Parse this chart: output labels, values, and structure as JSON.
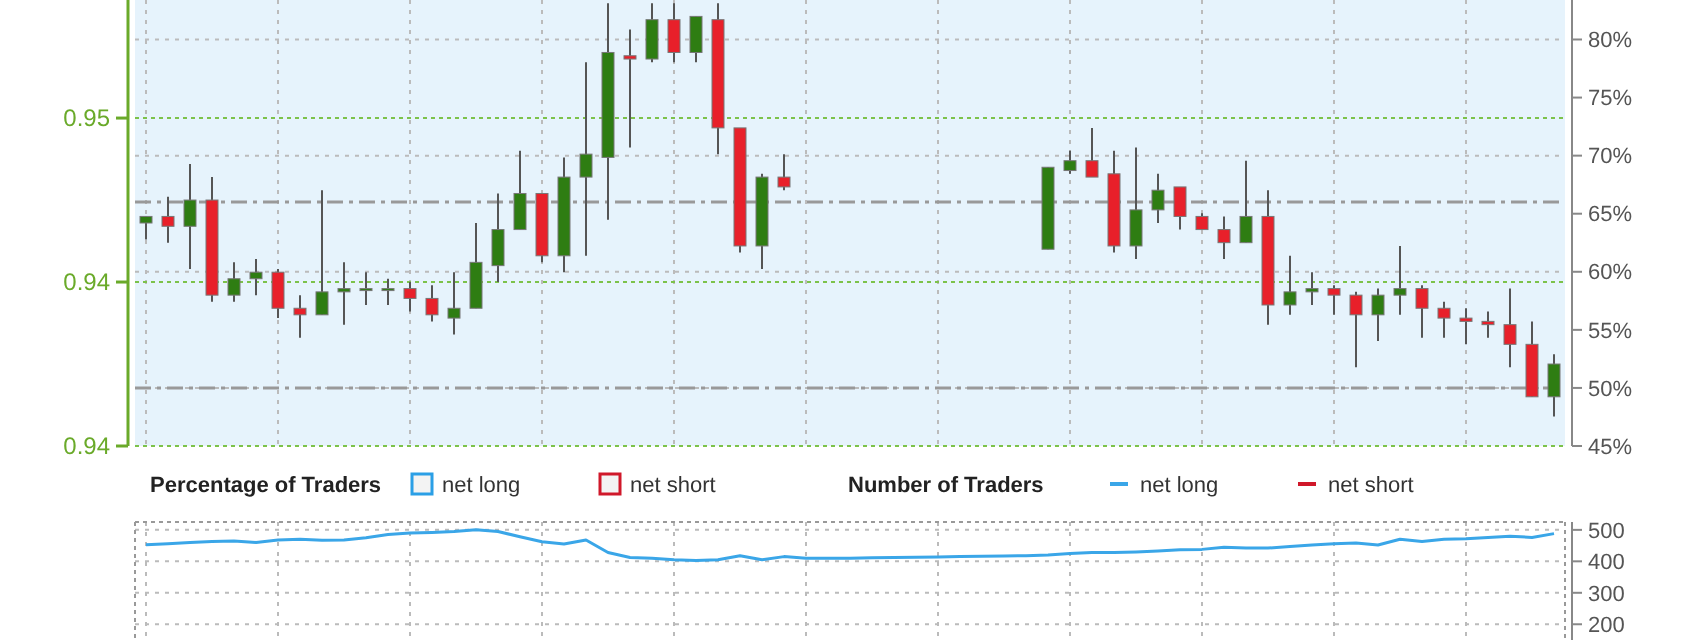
{
  "chart_data": [
    {
      "type": "candlestick",
      "categories": [
        null,
        null,
        null,
        null,
        null,
        null,
        null,
        null,
        null,
        null,
        null,
        null,
        null,
        null,
        null,
        null,
        null,
        null,
        null,
        null,
        null,
        null,
        null,
        null,
        null,
        null,
        null,
        null,
        null,
        null,
        null,
        null,
        null,
        null,
        null,
        null,
        null,
        null,
        null,
        null,
        null,
        null,
        null,
        null,
        null,
        null,
        null,
        null,
        null,
        null,
        null,
        null,
        null,
        null,
        null,
        null,
        null,
        null,
        null,
        null,
        null,
        null,
        null,
        null,
        null
      ],
      "ohlc": [
        [
          0.9468,
          0.947,
          0.9463,
          0.947
        ],
        [
          0.947,
          0.9476,
          0.9462,
          0.9467
        ],
        [
          0.9467,
          0.9486,
          0.9454,
          0.9475
        ],
        [
          0.9475,
          0.9482,
          0.9444,
          0.9446
        ],
        [
          0.9446,
          0.9456,
          0.9444,
          0.9451
        ],
        [
          0.9451,
          0.9457,
          0.9446,
          0.9453
        ],
        [
          0.9453,
          0.9454,
          0.9439,
          0.9442
        ],
        [
          0.9442,
          0.9446,
          0.9433,
          0.944
        ],
        [
          0.944,
          0.9478,
          0.944,
          0.9447
        ],
        [
          0.9447,
          0.9456,
          0.9437,
          0.9448
        ],
        [
          0.9448,
          0.9453,
          0.9443,
          0.9448
        ],
        [
          0.9448,
          0.9451,
          0.9443,
          0.9448
        ],
        [
          0.9448,
          0.945,
          0.9441,
          0.9445
        ],
        [
          0.9445,
          0.9449,
          0.9438,
          0.944
        ],
        [
          0.9439,
          0.9453,
          0.9434,
          0.9442
        ],
        [
          0.9442,
          0.9468,
          0.9442,
          0.9456
        ],
        [
          0.9455,
          0.9477,
          0.945,
          0.9466
        ],
        [
          0.9466,
          0.949,
          0.9466,
          0.9477
        ],
        [
          0.9477,
          0.9477,
          0.9456,
          0.9458
        ],
        [
          0.9458,
          0.9488,
          0.9453,
          0.9482
        ],
        [
          0.9482,
          0.9517,
          0.9458,
          0.9489
        ],
        [
          0.9488,
          0.9535,
          0.9469,
          0.952
        ],
        [
          0.9519,
          0.9527,
          0.9491,
          0.9518
        ],
        [
          0.9518,
          0.9535,
          0.9517,
          0.953
        ],
        [
          0.953,
          0.9535,
          0.9517,
          0.952
        ],
        [
          0.952,
          0.9531,
          0.9517,
          0.9531
        ],
        [
          0.953,
          0.9535,
          0.9489,
          0.9497
        ],
        [
          0.9497,
          0.9497,
          0.9459,
          0.9461
        ],
        [
          0.9461,
          0.9483,
          0.9454,
          0.9482
        ],
        [
          0.9482,
          0.9489,
          0.9478,
          0.9479
        ],
        null,
        null,
        null,
        null,
        null,
        null,
        null,
        null,
        null,
        null,
        null,
        [
          0.946,
          0.9485,
          0.946,
          0.9485
        ],
        [
          0.9484,
          0.949,
          0.9483,
          0.9487
        ],
        [
          0.9487,
          0.9497,
          0.9482,
          0.9482
        ],
        [
          0.9483,
          0.949,
          0.9459,
          0.9461
        ],
        [
          0.9461,
          0.9491,
          0.9457,
          0.9472
        ],
        [
          0.9472,
          0.9483,
          0.9468,
          0.9478
        ],
        [
          0.9479,
          0.9479,
          0.9466,
          0.947
        ],
        [
          0.947,
          0.9471,
          0.9466,
          0.9466
        ],
        [
          0.9466,
          0.947,
          0.9457,
          0.9462
        ],
        [
          0.9462,
          0.9487,
          0.9462,
          0.947
        ],
        [
          0.947,
          0.9478,
          0.9437,
          0.9443
        ],
        [
          0.9443,
          0.9458,
          0.944,
          0.9447
        ],
        [
          0.9447,
          0.9453,
          0.9443,
          0.9448
        ],
        [
          0.9448,
          0.9449,
          0.944,
          0.9446
        ],
        [
          0.9446,
          0.9447,
          0.9424,
          0.944
        ],
        [
          0.944,
          0.9448,
          0.9432,
          0.9446
        ],
        [
          0.9446,
          0.9461,
          0.944,
          0.9448
        ],
        [
          0.9448,
          0.9449,
          0.9433,
          0.9442
        ],
        [
          0.9442,
          0.9444,
          0.9433,
          0.9439
        ],
        [
          0.9439,
          0.9442,
          0.9431,
          0.9438
        ],
        [
          0.9438,
          0.9441,
          0.9433,
          0.9437
        ],
        [
          0.9437,
          0.9448,
          0.9424,
          0.9431
        ],
        [
          0.9431,
          0.9438,
          0.9415,
          0.9415
        ],
        [
          0.9415,
          0.9428,
          0.9409,
          0.9425
        ]
      ],
      "colors": [
        "#2e7d12",
        "#e8202a",
        "#2e7d12",
        "#e8202a",
        "#2e7d12",
        "#2e7d12",
        "#e8202a",
        "#e8202a",
        "#2e7d12",
        "#2e7d12",
        "#2e7d12",
        "#2e7d12",
        "#e8202a",
        "#e8202a",
        "#2e7d12",
        "#2e7d12",
        "#2e7d12",
        "#2e7d12",
        "#e8202a",
        "#2e7d12",
        "#2e7d12",
        "#2e7d12",
        "#e8202a",
        "#2e7d12",
        "#e8202a",
        "#2e7d12",
        "#e8202a",
        "#e8202a",
        "#2e7d12",
        "#e8202a",
        null,
        null,
        null,
        null,
        null,
        null,
        null,
        null,
        null,
        null,
        null,
        "#2e7d12",
        "#2e7d12",
        "#e8202a",
        "#e8202a",
        "#2e7d12",
        "#2e7d12",
        "#e8202a",
        "#e8202a",
        "#e8202a",
        "#2e7d12",
        "#e8202a",
        "#2e7d12",
        "#2e7d12",
        "#e8202a",
        "#e8202a",
        "#2e7d12",
        "#2e7d12",
        "#e8202a",
        "#e8202a",
        "#e8202a",
        "#e8202a",
        "#e8202a",
        "#e8202a",
        "#2e7d12"
      ],
      "ylim": [
        0.94,
        0.9536
      ],
      "yticks": [
        {
          "value": 0.94,
          "label": "0.94"
        },
        {
          "value": 0.945,
          "label": "0.94"
        },
        {
          "value": 0.95,
          "label": "0.95"
        }
      ],
      "y2lim": [
        45,
        83.4
      ],
      "y2ticks": [
        {
          "value": 45,
          "label": "45%"
        },
        {
          "value": 50,
          "label": "50%"
        },
        {
          "value": 55,
          "label": "55%"
        },
        {
          "value": 60,
          "label": "60%"
        },
        {
          "value": 65,
          "label": "65%"
        },
        {
          "value": 70,
          "label": "70%"
        },
        {
          "value": 75,
          "label": "75%"
        },
        {
          "value": 80,
          "label": "80%"
        }
      ],
      "ref_lines": [
        {
          "axis": "y2",
          "value": 66,
          "color": "#999999",
          "line_style": "dashed"
        },
        {
          "axis": "y2",
          "value": 50,
          "color": "#999999",
          "line_style": "dashed"
        }
      ],
      "series": [
        {
          "name": "net long",
          "type": "bar",
          "color": "#2b9fe6",
          "values": [
            null,
            null,
            null,
            null,
            null,
            null,
            null,
            null,
            null,
            null,
            null,
            null,
            null,
            null,
            null,
            null,
            null,
            null,
            null,
            null,
            null,
            null,
            null,
            null,
            null,
            null,
            null,
            null,
            null,
            null,
            null,
            null,
            null,
            null,
            null,
            null,
            null,
            null,
            null,
            null,
            null,
            null,
            null,
            null,
            null,
            null,
            null,
            null,
            null,
            null,
            null,
            null,
            null,
            null,
            null,
            null,
            null,
            null,
            null,
            null,
            null,
            null,
            null,
            null,
            null
          ]
        },
        {
          "name": "net short",
          "type": "bar",
          "color": "#d0182a",
          "values": [
            null,
            null,
            null,
            null,
            null,
            null,
            null,
            null,
            null,
            null,
            null,
            null,
            null,
            null,
            null,
            null,
            null,
            null,
            null,
            null,
            null,
            null,
            null,
            null,
            null,
            null,
            null,
            null,
            null,
            null,
            null,
            null,
            null,
            null,
            null,
            null,
            null,
            null,
            null,
            null,
            null,
            null,
            null,
            null,
            null,
            null,
            null,
            null,
            null,
            null,
            null,
            null,
            null,
            null,
            null,
            null,
            null,
            null,
            null,
            null,
            null,
            null,
            null,
            null,
            null
          ]
        }
      ],
      "legend_title": "Percentage of Traders",
      "legend": "bottom",
      "grid": true
    },
    {
      "type": "line",
      "categories": [
        null,
        null,
        null,
        null,
        null,
        null,
        null,
        null,
        null,
        null,
        null,
        null,
        null,
        null,
        null,
        null,
        null,
        null,
        null,
        null,
        null,
        null,
        null,
        null,
        null,
        null,
        null,
        null,
        null,
        null,
        null,
        null,
        null,
        null,
        null,
        null,
        null,
        null,
        null,
        null,
        null,
        null,
        null,
        null,
        null,
        null,
        null,
        null,
        null,
        null,
        null,
        null,
        null,
        null,
        null,
        null,
        null,
        null,
        null,
        null,
        null,
        null,
        null,
        null,
        null
      ],
      "series": [
        {
          "name": "net long",
          "color": "#3aa6e8",
          "values": [
            453,
            456,
            460,
            463,
            465,
            460,
            468,
            470,
            467,
            468,
            475,
            485,
            490,
            492,
            495,
            500,
            495,
            478,
            462,
            455,
            468,
            428,
            412,
            410,
            405,
            403,
            405,
            418,
            405,
            415,
            410,
            410,
            410,
            411,
            412,
            413,
            414,
            415,
            416,
            417,
            418,
            420,
            425,
            428,
            428,
            430,
            433,
            437,
            438,
            445,
            442,
            442,
            447,
            452,
            456,
            458,
            452,
            470,
            463,
            470,
            472,
            476,
            480,
            476,
            488
          ]
        },
        {
          "name": "net short",
          "color": "#d0182a",
          "values": [
            null,
            null,
            null,
            null,
            null,
            null,
            null,
            null,
            null,
            null,
            null,
            null,
            null,
            null,
            null,
            null,
            null,
            null,
            null,
            null,
            null,
            null,
            null,
            null,
            null,
            null,
            null,
            null,
            null,
            null,
            null,
            null,
            null,
            null,
            null,
            null,
            null,
            null,
            null,
            null,
            null,
            null,
            null,
            null,
            null,
            null,
            null,
            null,
            null,
            null,
            null,
            null,
            null,
            null,
            null,
            null,
            null,
            null,
            null,
            null,
            null,
            null,
            null,
            null,
            null
          ]
        }
      ],
      "ylim": [
        150,
        525
      ],
      "yticks": [
        200,
        300,
        400,
        500
      ],
      "legend_title": "Number of Traders",
      "legend": "top",
      "grid": true,
      "marker": "none"
    }
  ]
}
